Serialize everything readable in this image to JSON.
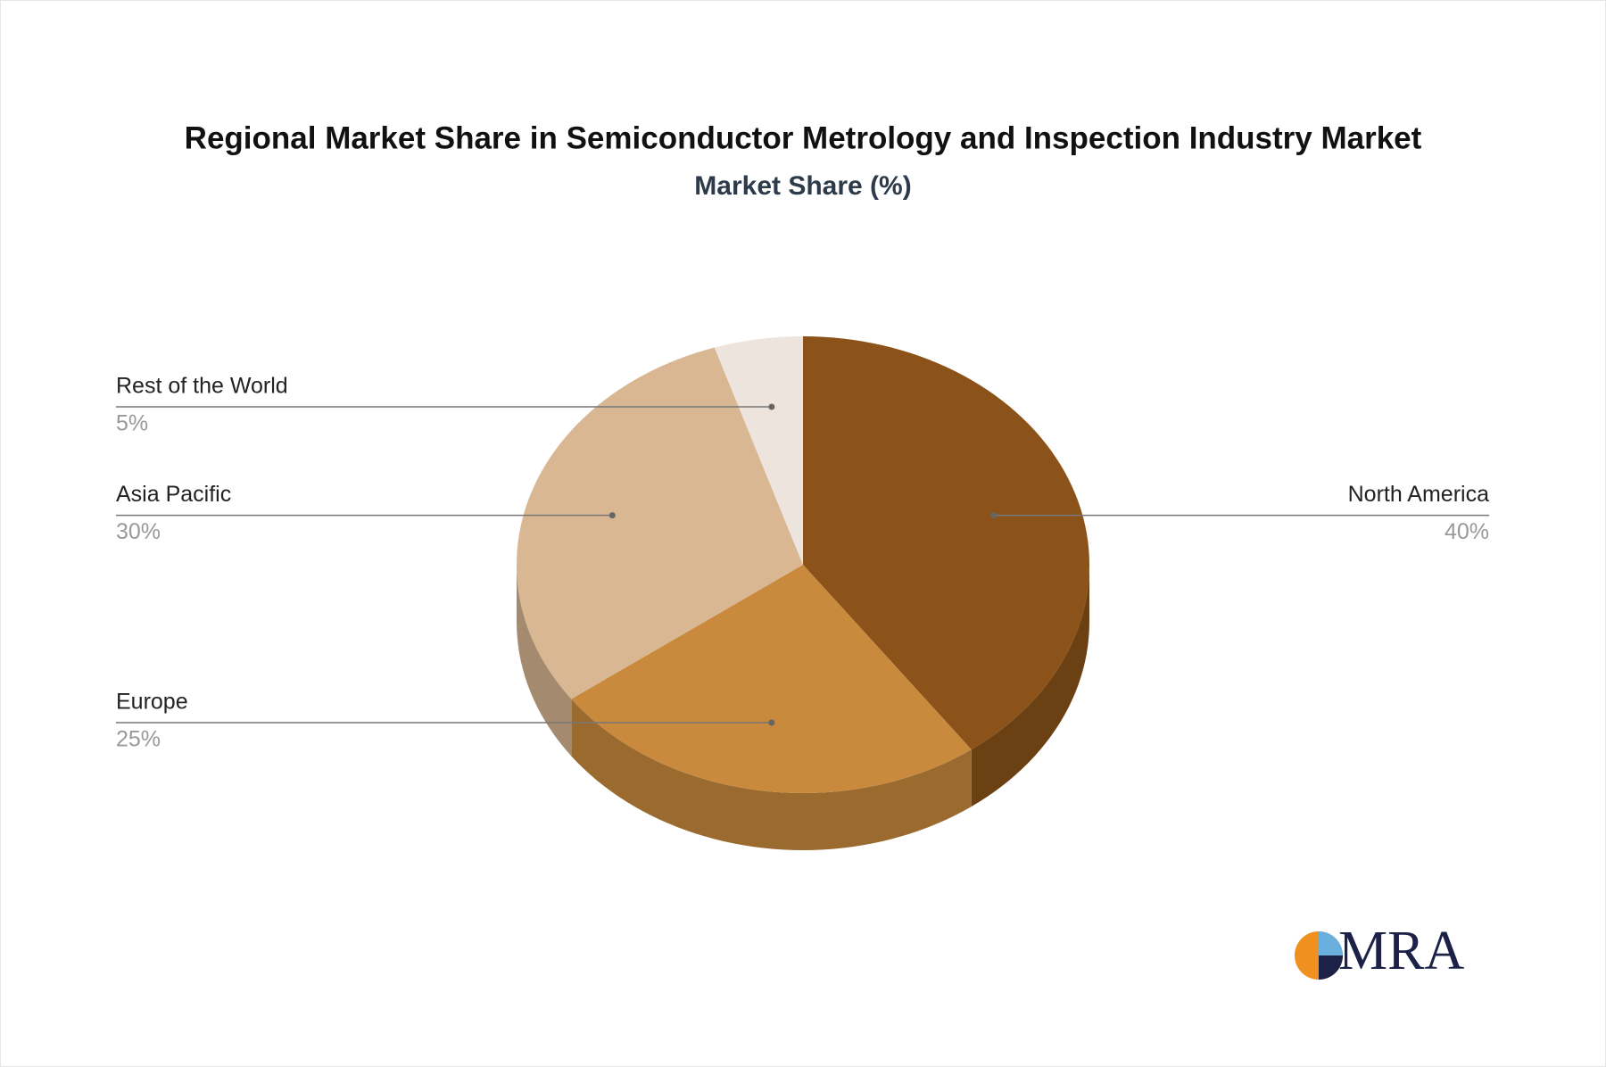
{
  "chart_data": {
    "type": "pie3d",
    "title": "Regional Market Share in Semiconductor Metrology and Inspection Industry Market",
    "subtitle": "Market Share (%)",
    "categories": [
      "North America",
      "Europe",
      "Asia Pacific",
      "Rest of the World"
    ],
    "values": [
      40,
      25,
      30,
      5
    ],
    "value_labels": [
      "40%",
      "25%",
      "30%",
      "5%"
    ],
    "colors": [
      "#8b5319",
      "#c98a3d",
      "#d8b792",
      "#eee4de"
    ]
  },
  "logo": "MRA"
}
